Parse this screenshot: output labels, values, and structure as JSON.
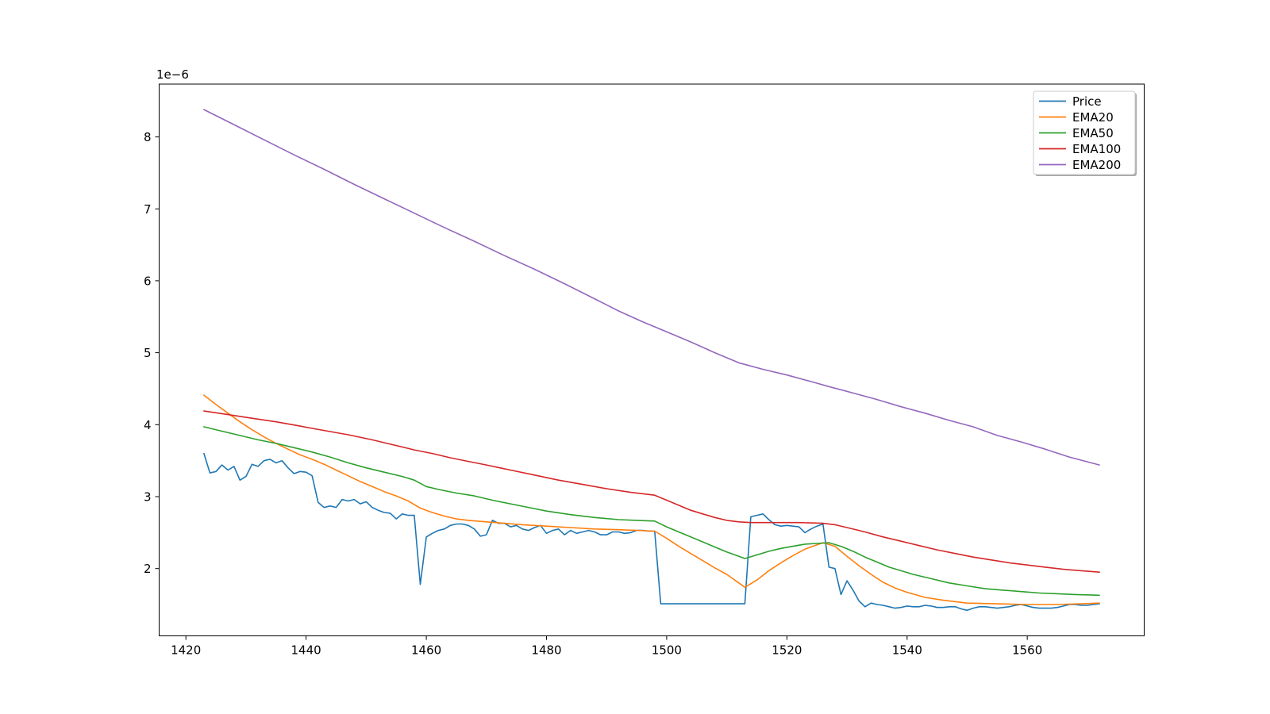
{
  "figure": {
    "background": "#ffffff"
  },
  "chart_data": {
    "type": "line",
    "title": "",
    "xlabel": "",
    "ylabel": "",
    "y_offset_label": "1e−6",
    "value_scale": "all y values are multiples of 1e-6",
    "grid": false,
    "legend_position": "upper right",
    "xlim": [
      1415.55,
      1579.45
    ],
    "ylim": [
      1.065,
      8.734
    ],
    "x_ticks": [
      1420,
      1440,
      1460,
      1480,
      1500,
      1520,
      1540,
      1560
    ],
    "y_ticks": [
      2,
      3,
      4,
      5,
      6,
      7,
      8
    ],
    "spine_color": "#000000",
    "legend_frame_color": "#cccccc",
    "legend_shadow_color": "#a6a6a6",
    "series": [
      {
        "name": "Price",
        "color": "#1f77b4",
        "x_start": 1423,
        "x_step": 1,
        "values": [
          3.6,
          3.33,
          3.35,
          3.44,
          3.37,
          3.42,
          3.23,
          3.28,
          3.45,
          3.42,
          3.5,
          3.52,
          3.47,
          3.5,
          3.4,
          3.32,
          3.35,
          3.34,
          3.29,
          2.92,
          2.85,
          2.87,
          2.85,
          2.96,
          2.94,
          2.96,
          2.9,
          2.93,
          2.85,
          2.81,
          2.78,
          2.77,
          2.69,
          2.76,
          2.74,
          2.74,
          1.78,
          2.44,
          2.49,
          2.53,
          2.55,
          2.6,
          2.62,
          2.62,
          2.6,
          2.55,
          2.45,
          2.47,
          2.67,
          2.63,
          2.63,
          2.58,
          2.6,
          2.55,
          2.53,
          2.57,
          2.6,
          2.49,
          2.53,
          2.55,
          2.47,
          2.53,
          2.49,
          2.51,
          2.53,
          2.51,
          2.47,
          2.47,
          2.51,
          2.51,
          2.49,
          2.5,
          2.53,
          2.53,
          2.52,
          2.52,
          1.51,
          1.51,
          1.51,
          1.51,
          1.51,
          1.51,
          1.51,
          1.51,
          1.51,
          1.51,
          1.51,
          1.51,
          1.51,
          1.51,
          1.51,
          2.72,
          2.74,
          2.76,
          2.68,
          2.61,
          2.59,
          2.6,
          2.59,
          2.58,
          2.5,
          2.55,
          2.59,
          2.62,
          2.02,
          2.0,
          1.64,
          1.83,
          1.7,
          1.55,
          1.47,
          1.52,
          1.5,
          1.49,
          1.47,
          1.45,
          1.46,
          1.48,
          1.47,
          1.47,
          1.49,
          1.48,
          1.46,
          1.46,
          1.47,
          1.47,
          1.44,
          1.42,
          1.45,
          1.47,
          1.47,
          1.46,
          1.45,
          1.46,
          1.47,
          1.49,
          1.5,
          1.48,
          1.46,
          1.45,
          1.45,
          1.45,
          1.46,
          1.48,
          1.5,
          1.5,
          1.49,
          1.49,
          1.5,
          1.51
        ]
      },
      {
        "name": "EMA20",
        "color": "#ff7f0e",
        "points": [
          [
            1423,
            4.41
          ],
          [
            1425,
            4.28
          ],
          [
            1427,
            4.16
          ],
          [
            1429,
            4.04
          ],
          [
            1431,
            3.93
          ],
          [
            1433,
            3.83
          ],
          [
            1435,
            3.74
          ],
          [
            1437,
            3.66
          ],
          [
            1439,
            3.58
          ],
          [
            1441,
            3.52
          ],
          [
            1443,
            3.45
          ],
          [
            1445,
            3.37
          ],
          [
            1447,
            3.29
          ],
          [
            1449,
            3.21
          ],
          [
            1451,
            3.14
          ],
          [
            1453,
            3.07
          ],
          [
            1455,
            3.01
          ],
          [
            1457,
            2.94
          ],
          [
            1459,
            2.84
          ],
          [
            1461,
            2.78
          ],
          [
            1463,
            2.73
          ],
          [
            1465,
            2.69
          ],
          [
            1467,
            2.67
          ],
          [
            1470,
            2.65
          ],
          [
            1473,
            2.63
          ],
          [
            1476,
            2.61
          ],
          [
            1480,
            2.59
          ],
          [
            1484,
            2.57
          ],
          [
            1488,
            2.55
          ],
          [
            1492,
            2.54
          ],
          [
            1495,
            2.53
          ],
          [
            1498,
            2.52
          ],
          [
            1500,
            2.42
          ],
          [
            1502,
            2.31
          ],
          [
            1504,
            2.21
          ],
          [
            1506,
            2.11
          ],
          [
            1508,
            2.01
          ],
          [
            1510,
            1.92
          ],
          [
            1512,
            1.8
          ],
          [
            1513,
            1.74
          ],
          [
            1515,
            1.84
          ],
          [
            1517,
            1.97
          ],
          [
            1519,
            2.08
          ],
          [
            1521,
            2.18
          ],
          [
            1523,
            2.27
          ],
          [
            1525,
            2.33
          ],
          [
            1526,
            2.36
          ],
          [
            1528,
            2.31
          ],
          [
            1530,
            2.17
          ],
          [
            1532,
            2.04
          ],
          [
            1534,
            1.92
          ],
          [
            1536,
            1.81
          ],
          [
            1538,
            1.73
          ],
          [
            1540,
            1.67
          ],
          [
            1543,
            1.6
          ],
          [
            1546,
            1.56
          ],
          [
            1550,
            1.52
          ],
          [
            1555,
            1.51
          ],
          [
            1560,
            1.5
          ],
          [
            1565,
            1.5
          ],
          [
            1569,
            1.51
          ],
          [
            1572,
            1.52
          ]
        ]
      },
      {
        "name": "EMA50",
        "color": "#2ca02c",
        "points": [
          [
            1423,
            3.97
          ],
          [
            1426,
            3.91
          ],
          [
            1429,
            3.85
          ],
          [
            1432,
            3.79
          ],
          [
            1435,
            3.74
          ],
          [
            1438,
            3.68
          ],
          [
            1441,
            3.62
          ],
          [
            1444,
            3.55
          ],
          [
            1447,
            3.47
          ],
          [
            1450,
            3.4
          ],
          [
            1453,
            3.34
          ],
          [
            1456,
            3.28
          ],
          [
            1458,
            3.23
          ],
          [
            1460,
            3.14
          ],
          [
            1462,
            3.1
          ],
          [
            1465,
            3.05
          ],
          [
            1468,
            3.01
          ],
          [
            1471,
            2.95
          ],
          [
            1474,
            2.9
          ],
          [
            1477,
            2.85
          ],
          [
            1480,
            2.8
          ],
          [
            1484,
            2.75
          ],
          [
            1488,
            2.71
          ],
          [
            1492,
            2.68
          ],
          [
            1495,
            2.67
          ],
          [
            1498,
            2.66
          ],
          [
            1500,
            2.58
          ],
          [
            1502,
            2.51
          ],
          [
            1504,
            2.44
          ],
          [
            1506,
            2.37
          ],
          [
            1508,
            2.3
          ],
          [
            1510,
            2.23
          ],
          [
            1512,
            2.17
          ],
          [
            1513,
            2.14
          ],
          [
            1515,
            2.19
          ],
          [
            1517,
            2.24
          ],
          [
            1519,
            2.28
          ],
          [
            1521,
            2.31
          ],
          [
            1523,
            2.34
          ],
          [
            1525,
            2.35
          ],
          [
            1527,
            2.36
          ],
          [
            1529,
            2.31
          ],
          [
            1531,
            2.24
          ],
          [
            1533,
            2.16
          ],
          [
            1535,
            2.09
          ],
          [
            1537,
            2.02
          ],
          [
            1539,
            1.97
          ],
          [
            1541,
            1.92
          ],
          [
            1544,
            1.86
          ],
          [
            1547,
            1.8
          ],
          [
            1550,
            1.76
          ],
          [
            1553,
            1.72
          ],
          [
            1556,
            1.7
          ],
          [
            1559,
            1.68
          ],
          [
            1562,
            1.66
          ],
          [
            1565,
            1.65
          ],
          [
            1568,
            1.64
          ],
          [
            1572,
            1.63
          ]
        ]
      },
      {
        "name": "EMA100",
        "color": "#d62728",
        "points": [
          [
            1423,
            4.19
          ],
          [
            1427,
            4.14
          ],
          [
            1431,
            4.09
          ],
          [
            1435,
            4.04
          ],
          [
            1439,
            3.98
          ],
          [
            1443,
            3.92
          ],
          [
            1447,
            3.86
          ],
          [
            1451,
            3.79
          ],
          [
            1455,
            3.71
          ],
          [
            1458,
            3.65
          ],
          [
            1461,
            3.6
          ],
          [
            1464,
            3.54
          ],
          [
            1467,
            3.49
          ],
          [
            1470,
            3.44
          ],
          [
            1474,
            3.37
          ],
          [
            1478,
            3.3
          ],
          [
            1482,
            3.23
          ],
          [
            1486,
            3.17
          ],
          [
            1490,
            3.11
          ],
          [
            1494,
            3.06
          ],
          [
            1498,
            3.02
          ],
          [
            1500,
            2.95
          ],
          [
            1502,
            2.88
          ],
          [
            1504,
            2.81
          ],
          [
            1506,
            2.76
          ],
          [
            1508,
            2.71
          ],
          [
            1510,
            2.67
          ],
          [
            1512,
            2.65
          ],
          [
            1514,
            2.64
          ],
          [
            1518,
            2.64
          ],
          [
            1522,
            2.64
          ],
          [
            1526,
            2.63
          ],
          [
            1528,
            2.61
          ],
          [
            1530,
            2.57
          ],
          [
            1533,
            2.51
          ],
          [
            1536,
            2.44
          ],
          [
            1539,
            2.38
          ],
          [
            1542,
            2.32
          ],
          [
            1545,
            2.26
          ],
          [
            1548,
            2.21
          ],
          [
            1551,
            2.16
          ],
          [
            1554,
            2.12
          ],
          [
            1557,
            2.08
          ],
          [
            1560,
            2.05
          ],
          [
            1563,
            2.02
          ],
          [
            1566,
            1.99
          ],
          [
            1569,
            1.97
          ],
          [
            1572,
            1.95
          ]
        ]
      },
      {
        "name": "EMA200",
        "color": "#9467bd",
        "points": [
          [
            1423,
            8.38
          ],
          [
            1428,
            8.17
          ],
          [
            1433,
            7.96
          ],
          [
            1438,
            7.75
          ],
          [
            1443,
            7.55
          ],
          [
            1448,
            7.34
          ],
          [
            1453,
            7.14
          ],
          [
            1458,
            6.94
          ],
          [
            1463,
            6.74
          ],
          [
            1468,
            6.55
          ],
          [
            1473,
            6.35
          ],
          [
            1478,
            6.16
          ],
          [
            1483,
            5.96
          ],
          [
            1488,
            5.75
          ],
          [
            1492,
            5.58
          ],
          [
            1496,
            5.43
          ],
          [
            1500,
            5.29
          ],
          [
            1504,
            5.15
          ],
          [
            1508,
            5.0
          ],
          [
            1512,
            4.86
          ],
          [
            1516,
            4.77
          ],
          [
            1520,
            4.69
          ],
          [
            1524,
            4.6
          ],
          [
            1527,
            4.53
          ],
          [
            1531,
            4.44
          ],
          [
            1535,
            4.35
          ],
          [
            1539,
            4.25
          ],
          [
            1543,
            4.16
          ],
          [
            1547,
            4.06
          ],
          [
            1551,
            3.97
          ],
          [
            1555,
            3.85
          ],
          [
            1559,
            3.76
          ],
          [
            1563,
            3.66
          ],
          [
            1567,
            3.55
          ],
          [
            1572,
            3.44
          ]
        ]
      }
    ],
    "legend": {
      "entries": [
        "Price",
        "EMA20",
        "EMA50",
        "EMA100",
        "EMA200"
      ]
    }
  }
}
